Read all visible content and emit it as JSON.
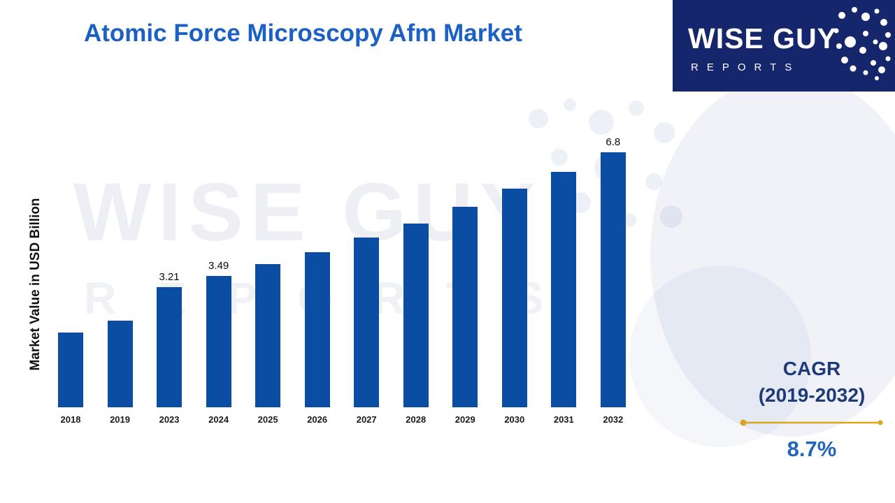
{
  "title": "Atomic Force Microscopy Afm Market",
  "logo": {
    "name_line": "WISE GUY",
    "reports_line": "REPORTS"
  },
  "watermark": {
    "line1": "WISE GUY",
    "line2": "REPORTS"
  },
  "cagr": {
    "label": "CAGR",
    "range": "(2019-2032)",
    "value": "8.7%"
  },
  "chart_data": {
    "type": "bar",
    "title": "Atomic Force Microscopy Afm Market",
    "xlabel": "",
    "ylabel": "Market Value in USD Billion",
    "categories": [
      "2018",
      "2019",
      "2023",
      "2024",
      "2025",
      "2026",
      "2027",
      "2028",
      "2029",
      "2030",
      "2031",
      "2032"
    ],
    "values": [
      2.0,
      2.3,
      3.21,
      3.49,
      3.81,
      4.13,
      4.52,
      4.89,
      5.35,
      5.82,
      6.28,
      6.8
    ],
    "data_labels": [
      "",
      "",
      "3.21",
      "3.49",
      "",
      "",
      "",
      "",
      "",
      "",
      "",
      "6.8"
    ],
    "ylim": [
      0,
      7.5
    ],
    "grid": false,
    "legend": false,
    "bar_color": "#0b4da2"
  },
  "colors": {
    "title": "#1b60c4",
    "bar": "#0b4da2",
    "logo_bg": "#16266d",
    "navy": "#1e3a78",
    "value": "#2065be",
    "gold": "#d9a521"
  }
}
